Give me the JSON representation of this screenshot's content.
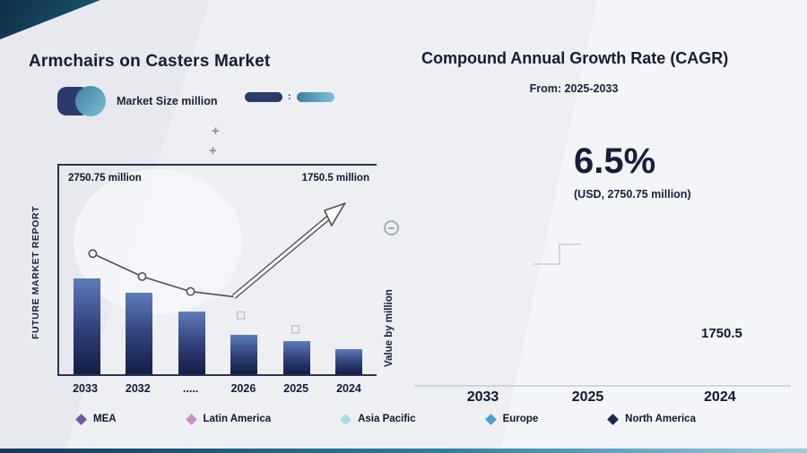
{
  "header": {
    "left_title": "Armchairs on Casters Market",
    "market_size_label": "Market Size million",
    "pills_separator": ":"
  },
  "left_chart": {
    "side_label": "FUTURE MARKET REPORT",
    "annotation_left": "2750.75 million",
    "annotation_right": "1750.5 million"
  },
  "right_panel": {
    "title": "Compound Annual Growth Rate (CAGR)",
    "subtitle": "From: 2025-2033",
    "cagr_value": "6.5%",
    "cagr_note": "(USD, 2750.75 million)",
    "ylabel": "Value by million",
    "bar_value_label": "1750.5"
  },
  "legend": [
    {
      "label": "MEA",
      "color": "#7159a6"
    },
    {
      "label": "Latin America",
      "color": "#cd8ec0"
    },
    {
      "label": "Asia Pacific",
      "color": "#a9d9e8"
    },
    {
      "label": "Europe",
      "color": "#4d9fce"
    },
    {
      "label": "North America",
      "color": "#1d2951"
    }
  ],
  "decor": {
    "plus": "+"
  },
  "colors": {
    "accent_navy": "#1b2240",
    "accent_teal": "#2e7f9e",
    "bar_blue_top": "#5d7cba",
    "bar_teal_top": "#2b8aa6",
    "bar_navy_bottom": "#11234e"
  },
  "chart_data": [
    {
      "type": "bar",
      "title": "Armchairs on Casters Market - Market Size million",
      "categories": [
        "2033",
        "2032",
        ".....",
        "2026",
        "2025",
        "2024"
      ],
      "values_million_estimated": [
        2750.75,
        2500,
        2250,
        2000,
        1875,
        1750.5
      ],
      "labeled_values": {
        "2033": 2750.75,
        "2024": 1750.5
      },
      "bar_heights_pct": [
        46,
        39,
        30,
        19,
        16,
        12
      ],
      "ylabel": "FUTURE MARKET REPORT",
      "annotation": "trend line with circle markers descending, hollow arrow rising to top-right",
      "grid": false,
      "legend_position": "none"
    },
    {
      "type": "bar",
      "title": "Compound Annual Growth Rate (CAGR)",
      "subtitle": "From: 2025-2033",
      "cagr_pct": 6.5,
      "usd_million": 2750.75,
      "categories": [
        "2033",
        "2025",
        "2024"
      ],
      "bar_heights_pct": [
        [
          96,
          68
        ],
        [
          39,
          31
        ],
        [
          24,
          17
        ]
      ],
      "value_labels": {
        "2024": 1750.5
      },
      "ylabel": "Value by million",
      "grid": false,
      "legend_position": "none"
    }
  ]
}
